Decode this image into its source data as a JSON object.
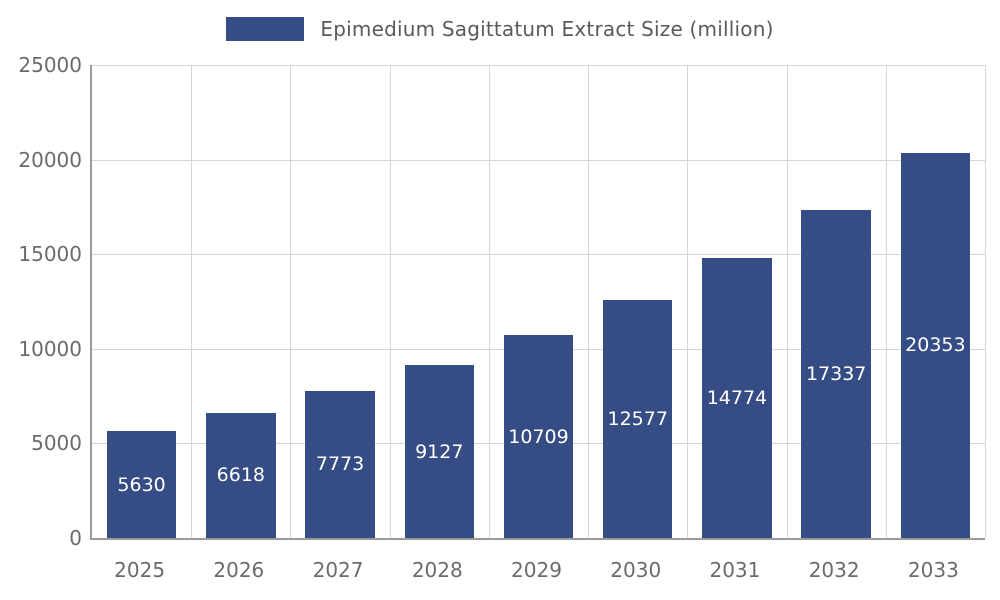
{
  "chart_data": {
    "type": "bar",
    "title": "Epimedium Sagittatum Extract Size (million)",
    "categories": [
      "2025",
      "2026",
      "2027",
      "2028",
      "2029",
      "2030",
      "2031",
      "2032",
      "2033"
    ],
    "values": [
      5630,
      6618,
      7773,
      9127,
      10709,
      12577,
      14774,
      17337,
      20353
    ],
    "xlabel": "",
    "ylabel": "",
    "ylim": [
      0,
      25000
    ],
    "yticks": [
      0,
      5000,
      10000,
      15000,
      20000,
      25000
    ],
    "grid": "on",
    "legend_position": "top-center",
    "bar_color": "#364c84",
    "label_color": "#ffffff",
    "axis_text_color": "#6b6b6b",
    "gridline_color": "#d6d6d6"
  },
  "legend": {
    "label": "Epimedium Sagittatum Extract Size (million)"
  }
}
